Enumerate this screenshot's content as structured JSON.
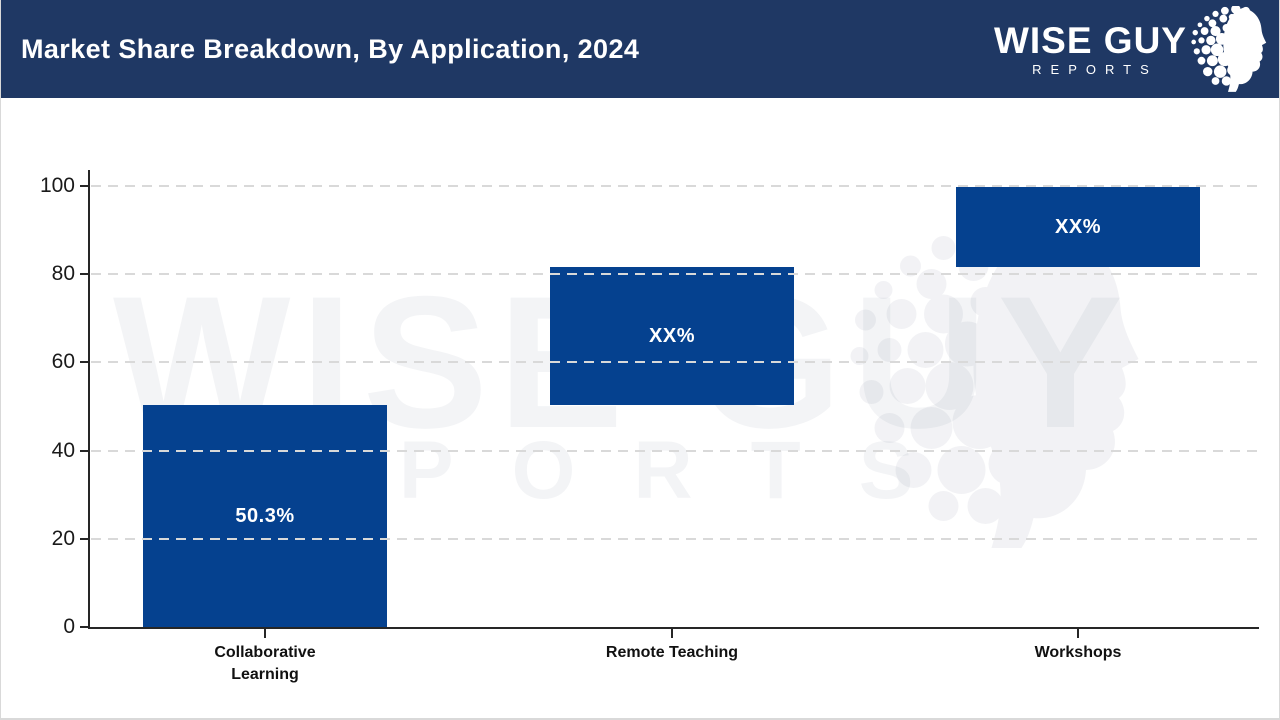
{
  "header": {
    "title": "Market Share Breakdown, By Application, 2024",
    "logo_line1": "WISE GUY",
    "logo_line2": "REPORTS",
    "background": "#1f3864"
  },
  "watermark": {
    "line1": "WISE GUY",
    "line2": "REPORTS"
  },
  "chart_data": {
    "type": "bar",
    "subtype": "waterfall",
    "title": "Market Share Breakdown, By Application, 2024",
    "categories": [
      "Collaborative Learning",
      "Remote Teaching",
      "Workshops"
    ],
    "segments": [
      {
        "category": "Collaborative Learning",
        "start": 0,
        "end": 50.3,
        "label": "50.3%"
      },
      {
        "category": "Remote Teaching",
        "start": 50.3,
        "end": 81.6,
        "label": "XX%"
      },
      {
        "category": "Workshops",
        "start": 81.6,
        "end": 99.8,
        "label": "XX%"
      }
    ],
    "ylim": [
      0,
      104
    ],
    "yticks": [
      0,
      20,
      40,
      60,
      80,
      100
    ],
    "xlabel": "",
    "ylabel": "",
    "grid": {
      "horizontal": true,
      "style": "dashed",
      "color": "#d9d9d9",
      "drawn_over_bars": true
    },
    "legend": "none",
    "bar_color": "#05418f",
    "bar_label_color": "#ffffff",
    "axis_color": "#262626",
    "tick_label_color": "#1a1a1a"
  }
}
